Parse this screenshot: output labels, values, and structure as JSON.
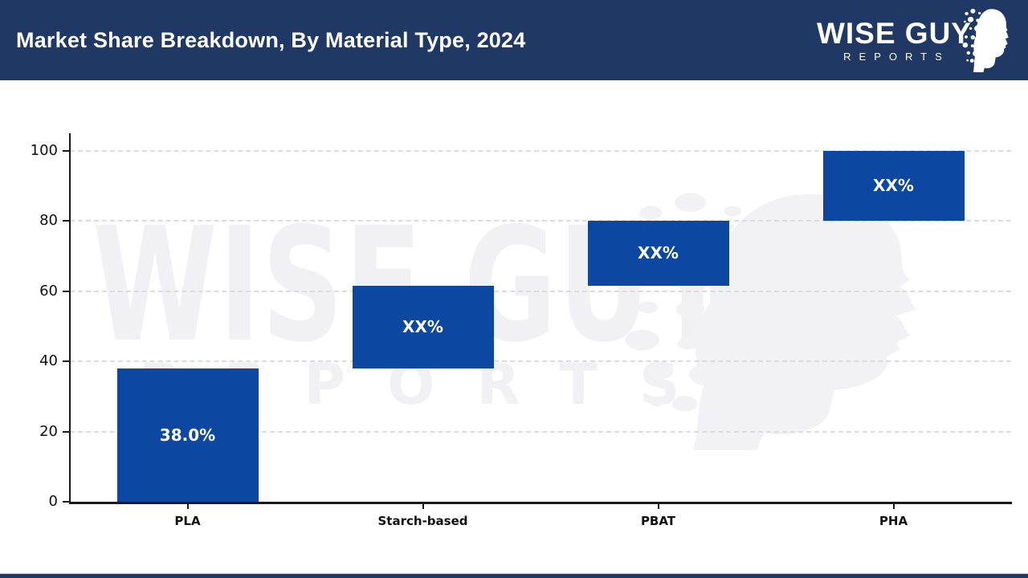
{
  "header": {
    "title": "Market Share Breakdown, By Material Type, 2024",
    "logo": {
      "name": "WISE GUY",
      "subtitle": "REPORTS"
    }
  },
  "watermark": {
    "line1": "WISE GUY",
    "line2": "REPORTS"
  },
  "colors": {
    "header_bg": "#1f3864",
    "bar": "#0c47a1",
    "grid": "#dcdcdc",
    "axis": "#1a1a1a",
    "tick_label": "#111111",
    "bar_label": "#ffffff",
    "watermark": "#f1f1f4"
  },
  "chart_data": {
    "type": "bar",
    "subtype": "waterfall",
    "title": "Market Share Breakdown, By Material Type, 2024",
    "categories": [
      "PLA",
      "Starch-based",
      "PBAT",
      "PHA"
    ],
    "segments": [
      {
        "category": "PLA",
        "start": 0,
        "end": 38,
        "value": 38.0,
        "label": "38.0%"
      },
      {
        "category": "Starch-based",
        "start": 38,
        "end": 61.5,
        "value": 23.5,
        "label": "XX%"
      },
      {
        "category": "PBAT",
        "start": 61.5,
        "end": 80,
        "value": 18.5,
        "label": "XX%"
      },
      {
        "category": "PHA",
        "start": 80,
        "end": 100,
        "value": 20.0,
        "label": "XX%"
      }
    ],
    "unit": "%",
    "ylim": [
      0,
      105
    ],
    "yticks": [
      0,
      20,
      40,
      60,
      80,
      100
    ],
    "xlabel": "",
    "ylabel": "",
    "grid": "horizontal-dashed",
    "legend": "none",
    "bar_color": "#0c47a1",
    "values_note": "XX% labels mask undisclosed values; starts/ends read from gridlines"
  }
}
